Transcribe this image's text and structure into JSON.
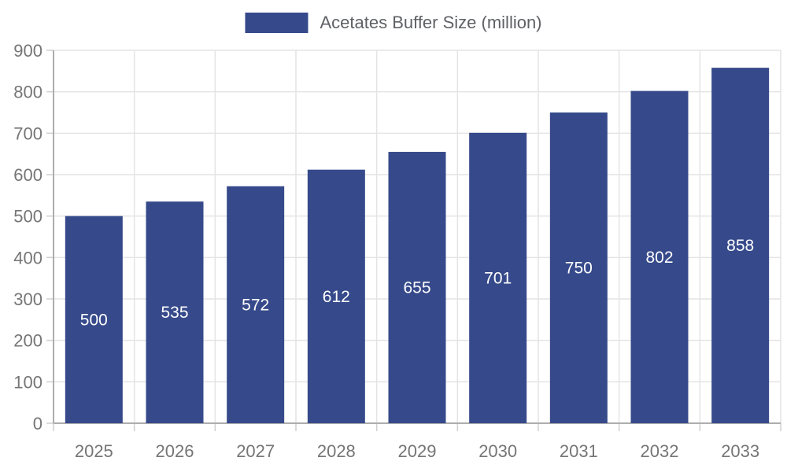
{
  "legend": {
    "label": "Acetates Buffer Size (million)"
  },
  "chart_data": {
    "type": "bar",
    "title": "Acetates Buffer Size (million)",
    "series_label": "Acetates Buffer Size (million)",
    "categories": [
      "2025",
      "2026",
      "2027",
      "2028",
      "2029",
      "2030",
      "2031",
      "2032",
      "2033"
    ],
    "values": [
      500,
      535,
      572,
      612,
      655,
      701,
      750,
      802,
      858
    ],
    "xlabel": "",
    "ylabel": "",
    "ylim": [
      0,
      900
    ],
    "yticks": [
      0,
      100,
      200,
      300,
      400,
      500,
      600,
      700,
      800,
      900
    ],
    "grid": true,
    "legend_position": "top-center",
    "bar_color": "#364a8b",
    "value_label_color": "#ffffff",
    "tick_label_color": "#757575",
    "axis_color": "#adadad",
    "tick_color": "#cfcfcf",
    "grid_color": "#e4e4e4"
  }
}
